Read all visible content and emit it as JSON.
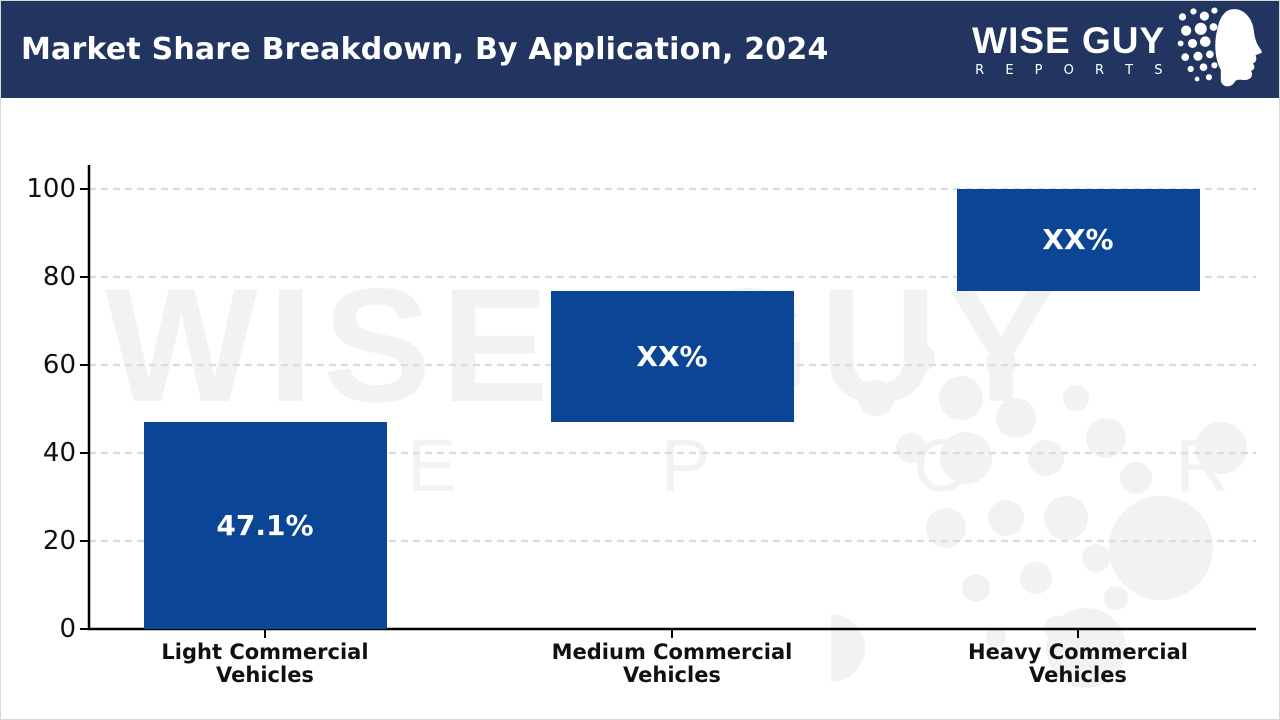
{
  "header": {
    "title": "Market Share Breakdown, By Application, 2024",
    "bg_color": "#213560",
    "logo": {
      "brand_line1": "WISE GUY",
      "brand_line2": "R E P O R T S"
    }
  },
  "watermark": {
    "line1": "WISE GUY",
    "line2": "R E P O R T S"
  },
  "chart_data": {
    "type": "bar",
    "subtype": "stacked-waterfall",
    "title": "Market Share Breakdown, By Application, 2024",
    "categories": [
      "Light Commercial Vehicles",
      "Medium Commercial Vehicles",
      "Heavy Commercial Vehicles"
    ],
    "categories_lines": [
      [
        "Light Commercial",
        "Vehicles"
      ],
      [
        "Medium Commercial",
        "Vehicles"
      ],
      [
        "Heavy Commercial",
        "Vehicles"
      ]
    ],
    "segments": [
      {
        "category": "Light Commercial Vehicles",
        "start": 0,
        "end": 47.1,
        "label": "47.1%"
      },
      {
        "category": "Medium Commercial Vehicles",
        "start": 47.1,
        "end": 76.9,
        "label": "XX%"
      },
      {
        "category": "Heavy Commercial Vehicles",
        "start": 76.9,
        "end": 100,
        "label": "XX%"
      }
    ],
    "ylim": [
      0,
      100
    ],
    "yticks": [
      0,
      20,
      40,
      60,
      80,
      100
    ],
    "grid": "horizontal-dashed",
    "legend": "none",
    "bar_color": "#0b4596",
    "bar_label_color": "#ffffff",
    "axis_color": "#000000",
    "gridline_color": "#dcdcdc"
  }
}
